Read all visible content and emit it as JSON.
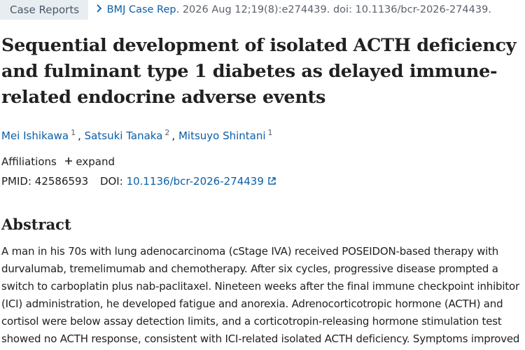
{
  "header": {
    "publication_type": "Case Reports",
    "journal": "BMJ Case Rep.",
    "citation": "2026 Aug 12;19(8):e274439. doi: 10.1136/bcr-2026-274439."
  },
  "title_lines": [
    "Sequential development of isolated ACTH deficiency",
    "and fulminant type 1 diabetes as delayed immune-",
    "related endocrine adverse events"
  ],
  "authors": {
    "separator": ",",
    "list": [
      {
        "name": "Mei Ishikawa",
        "affiliation": "1"
      },
      {
        "name": "Satsuki Tanaka",
        "affiliation": "2"
      },
      {
        "name": "Mitsuyo Shintani",
        "affiliation": "1"
      }
    ]
  },
  "affiliations": {
    "label": "Affiliations",
    "toggle": "expand"
  },
  "identifiers": {
    "pmid_label": "PMID:",
    "pmid": "42586593",
    "doi_label": "DOI:",
    "doi": "10.1136/bcr-2026-274439"
  },
  "abstract": {
    "heading": "Abstract",
    "lines": [
      "A man in his 70s with lung adenocarcinoma (cStage IVA) received POSEIDON-based therapy with",
      "durvalumab, tremelimumab and chemotherapy. After six cycles, progressive disease prompted a",
      "switch to carboplatin plus nab-paclitaxel. Nineteen weeks after the final immune checkpoint inhibitor",
      "(ICI) administration, he developed fatigue and anorexia. Adrenocorticotropic hormone (ACTH) and",
      "cortisol were below assay detection limits, and a corticotropin-releasing hormone stimulation test",
      "showed no ACTH response, consistent with ICI-related isolated ACTH deficiency. Symptoms improved"
    ]
  }
}
